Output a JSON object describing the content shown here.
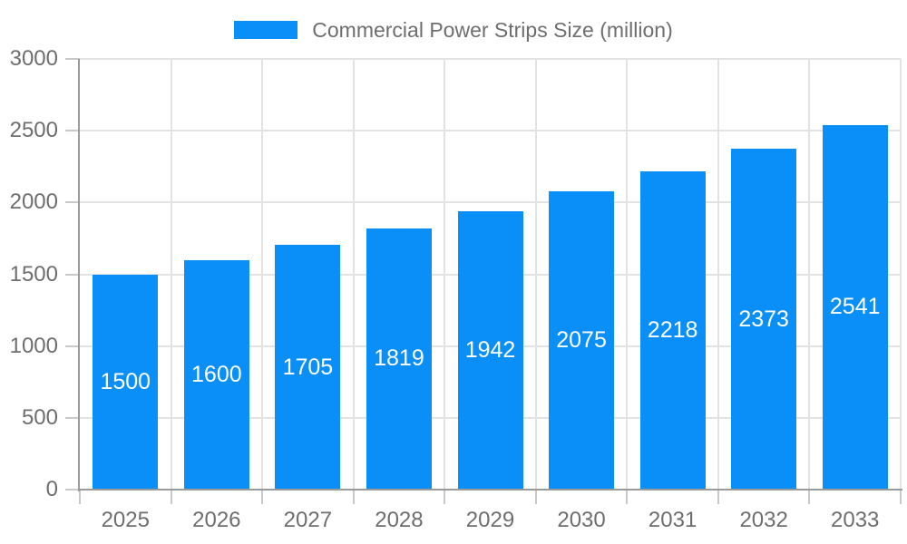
{
  "chart_data": {
    "type": "bar",
    "title": "",
    "categories": [
      "2025",
      "2026",
      "2027",
      "2028",
      "2029",
      "2030",
      "2031",
      "2032",
      "2033"
    ],
    "series": [
      {
        "name": "Commercial Power Strips Size (million)",
        "values": [
          1500,
          1600,
          1705,
          1819,
          1942,
          2075,
          2218,
          2373,
          2541
        ],
        "color": "#0a8ff9"
      }
    ],
    "xlabel": "",
    "ylabel": "",
    "ylim": [
      0,
      3000
    ],
    "yticks": [
      0,
      500,
      1000,
      1500,
      2000,
      2500,
      3000
    ],
    "grid": true,
    "legend_position": "top",
    "value_labels": "inside-center"
  },
  "style": {
    "background": "#ffffff",
    "bar_color": "#0a8ff9",
    "grid_color": "#e3e3e3",
    "tick_color": "#c9c9c9",
    "axis_line_color": "#9a9a9a",
    "text_color": "#6e6e6e",
    "value_label_color": "#ffffff"
  }
}
